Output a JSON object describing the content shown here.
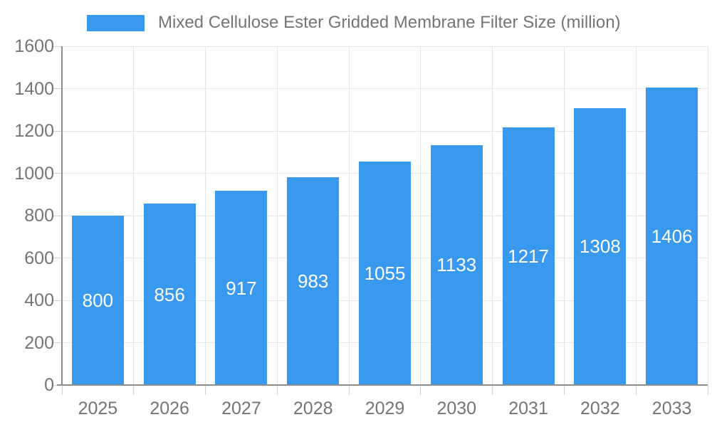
{
  "chart_data": {
    "type": "bar",
    "title": "Mixed Cellulose Ester Gridded Membrane Filter Size (million)",
    "categories": [
      "2025",
      "2026",
      "2027",
      "2028",
      "2029",
      "2030",
      "2031",
      "2032",
      "2033"
    ],
    "values": [
      800,
      856,
      917,
      983,
      1055,
      1133,
      1217,
      1308,
      1406
    ],
    "series": [
      {
        "name": "Mixed Cellulose Ester Gridded Membrane Filter Size (million)",
        "values": [
          800,
          856,
          917,
          983,
          1055,
          1133,
          1217,
          1308,
          1406
        ]
      }
    ],
    "xlabel": "",
    "ylabel": "",
    "ylim": [
      0,
      1600
    ],
    "ytick_step": 200,
    "ytick_labels": [
      "0",
      "200",
      "400",
      "600",
      "800",
      "1000",
      "1200",
      "1400",
      "1600"
    ],
    "grid": true,
    "legend_position": "top-left",
    "value_label_position": "inside-center"
  },
  "colors": {
    "bar": "#3999EE",
    "grid": "#E6E6E6",
    "tick": "#CFCFCF",
    "axis": "#8C8C8C",
    "text": "#757575",
    "value_label": "#FFFFFF",
    "background": "#FFFFFF"
  }
}
